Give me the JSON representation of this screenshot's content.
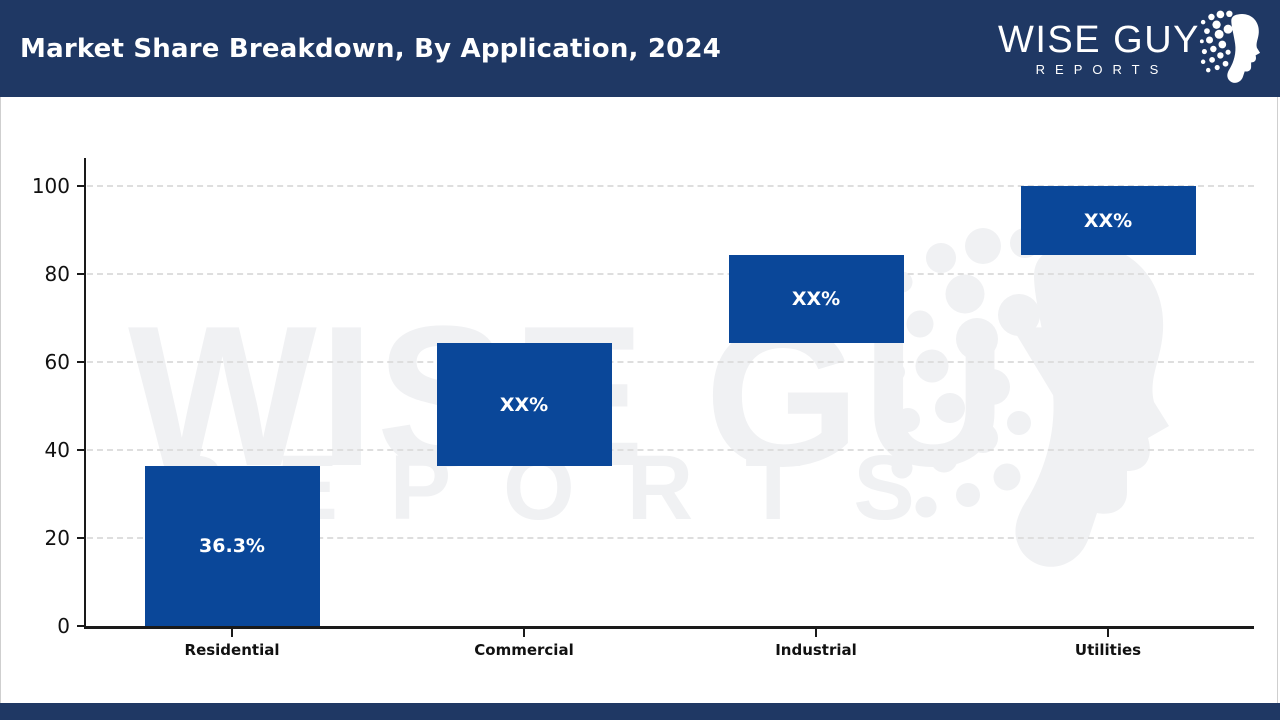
{
  "header": {
    "title": "Market Share Breakdown, By Application, 2024",
    "logo_line1": "WISE GUY",
    "logo_line2": "REPORTS",
    "bg_color": "#1f3864"
  },
  "watermark": {
    "line1": "WISE GUY",
    "line2": "REPORTS"
  },
  "chart_data": {
    "type": "bar",
    "subtype": "floating-waterfall",
    "title": "Market Share Breakdown, By Application, 2024",
    "categories": [
      "Residential",
      "Commercial",
      "Industrial",
      "Utilities"
    ],
    "segments": [
      {
        "category": "Residential",
        "start": 0,
        "end": 36.3,
        "label": "36.3%"
      },
      {
        "category": "Commercial",
        "start": 36.3,
        "end": 64.3,
        "label": "XX%"
      },
      {
        "category": "Industrial",
        "start": 64.3,
        "end": 84.3,
        "label": "XX%"
      },
      {
        "category": "Utilities",
        "start": 84.3,
        "end": 100,
        "label": "XX%"
      }
    ],
    "xlabel": "",
    "ylabel": "",
    "ylim": [
      0,
      100
    ],
    "yticks": [
      0,
      20,
      40,
      60,
      80,
      100
    ],
    "grid": "horizontal-dashed",
    "legend": "none",
    "bar_color": "#0a4799",
    "bar_label_color": "#ffffff"
  },
  "footer": {
    "bg_color": "#1f3864"
  }
}
